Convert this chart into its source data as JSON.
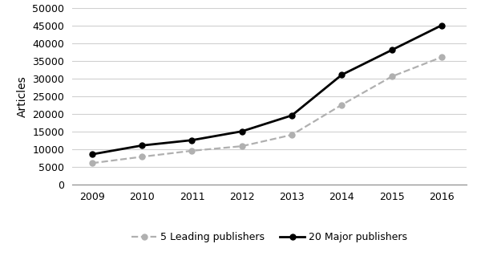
{
  "years": [
    2009,
    2010,
    2011,
    2012,
    2013,
    2014,
    2015,
    2016
  ],
  "leading_publishers": [
    6000,
    7800,
    9500,
    10800,
    14000,
    22500,
    30500,
    36000
  ],
  "major_publishers": [
    8500,
    11000,
    12500,
    15000,
    19500,
    31000,
    38000,
    45000
  ],
  "ylabel": "Articles",
  "ylim": [
    0,
    50000
  ],
  "yticks": [
    0,
    5000,
    10000,
    15000,
    20000,
    25000,
    30000,
    35000,
    40000,
    45000,
    50000
  ],
  "legend_leading": "5 Leading publishers",
  "legend_major": "20 Major publishers",
  "line_color_leading": "#b0b0b0",
  "line_color_major": "#000000",
  "background_color": "#ffffff",
  "grid_color": "#d0d0d0"
}
